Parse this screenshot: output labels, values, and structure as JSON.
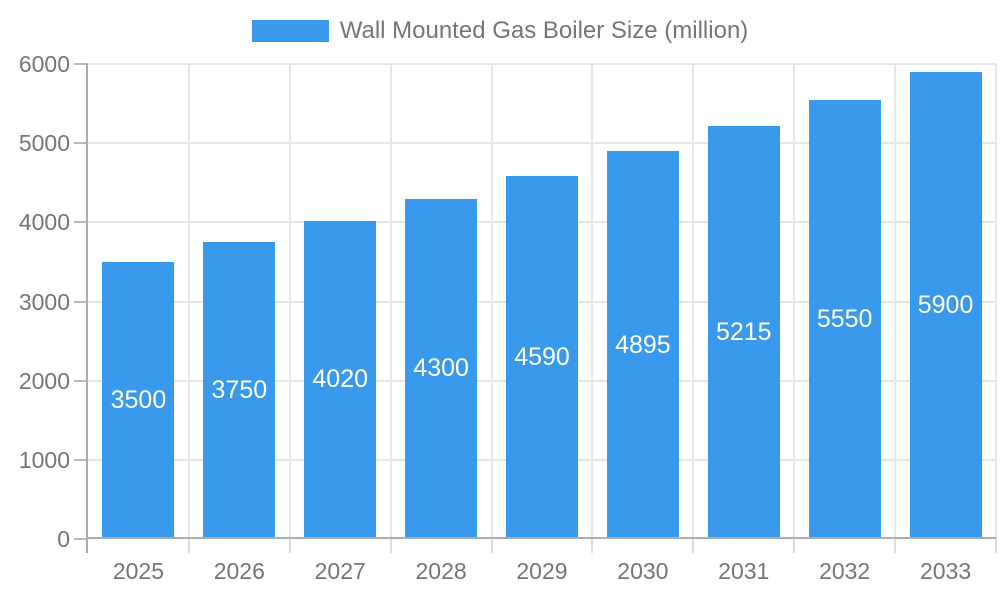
{
  "chart_data": {
    "type": "bar",
    "title": "Wall Mounted Gas Boiler Size (million)",
    "legend_entries": [
      "Wall Mounted Gas Boiler Size (million)"
    ],
    "legend_position": "top-center",
    "categories": [
      "2025",
      "2026",
      "2027",
      "2028",
      "2029",
      "2030",
      "2031",
      "2032",
      "2033"
    ],
    "series": [
      {
        "name": "Wall Mounted Gas Boiler Size (million)",
        "values": [
          3500,
          3750,
          4020,
          4300,
          4590,
          4895,
          5215,
          5550,
          5900
        ]
      }
    ],
    "value_labels": [
      "3500",
      "3750",
      "4020",
      "4300",
      "4590",
      "4895",
      "5215",
      "5550",
      "5900"
    ],
    "xlabel": "",
    "ylabel": "",
    "ylim": [
      0,
      6000
    ],
    "y_ticks": [
      0,
      1000,
      2000,
      3000,
      4000,
      5000,
      6000
    ],
    "grid": true,
    "colors": {
      "bar": "#3999EC",
      "value_label": "#FFFFFF",
      "axis_label": "#757575",
      "legend_label": "#757575",
      "grid_line": "#E6E6E6",
      "axis_line": "#ADADAD",
      "y_tick": "#B8B8B8",
      "x_tick": "#DCDCDC",
      "background": "#FFFFFF"
    }
  }
}
